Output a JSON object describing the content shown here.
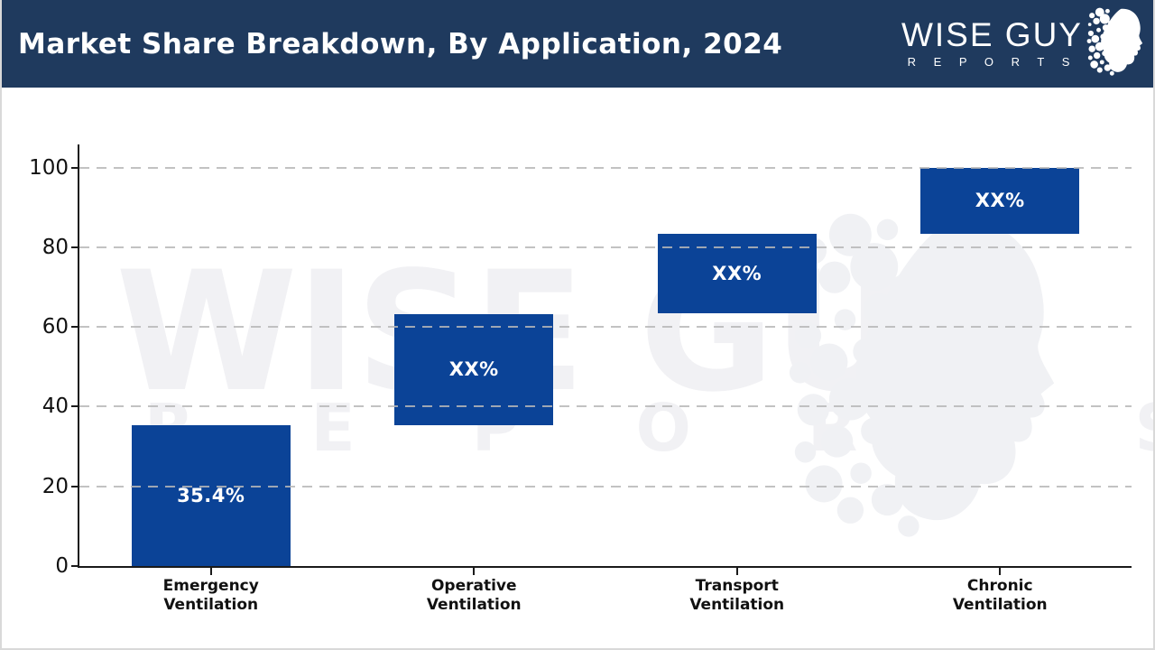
{
  "header": {
    "title": "Market Share Breakdown, By Application, 2024",
    "logo": {
      "line1": "WISE GUY",
      "line2": "R E P O R T S"
    }
  },
  "watermark": {
    "line1": "WISE GUY",
    "line2": "R E P O R T S"
  },
  "colors": {
    "header_bg": "#1f3a5e",
    "bar": "#0b4397",
    "bar_label": "#ffffff",
    "axis": "#1a1a1a",
    "gridline": "#bcbcbc",
    "watermark": "#f1f1f4"
  },
  "chart_data": {
    "type": "bar",
    "subtype": "floating-waterfall",
    "title": "Market Share Breakdown, By Application, 2024",
    "categories": [
      "Emergency Ventilation",
      "Operative Ventilation",
      "Transport Ventilation",
      "Chronic Ventilation"
    ],
    "segments": [
      {
        "category": "Emergency Ventilation",
        "start": 0,
        "end": 35.4,
        "label": "35.4%"
      },
      {
        "category": "Operative Ventilation",
        "start": 35.4,
        "end": 63.2,
        "label": "XX%"
      },
      {
        "category": "Transport Ventilation",
        "start": 63.4,
        "end": 83.3,
        "label": "XX%"
      },
      {
        "category": "Chronic Ventilation",
        "start": 83.4,
        "end": 100,
        "label": "XX%"
      }
    ],
    "ylim": [
      0,
      100
    ],
    "yticks": [
      0,
      20,
      40,
      60,
      80,
      100
    ],
    "xlabel": "",
    "ylabel": "",
    "grid": "horizontal-dashed",
    "legend": "none",
    "bar_color": "#0b4397",
    "bar_label_color": "#ffffff"
  }
}
